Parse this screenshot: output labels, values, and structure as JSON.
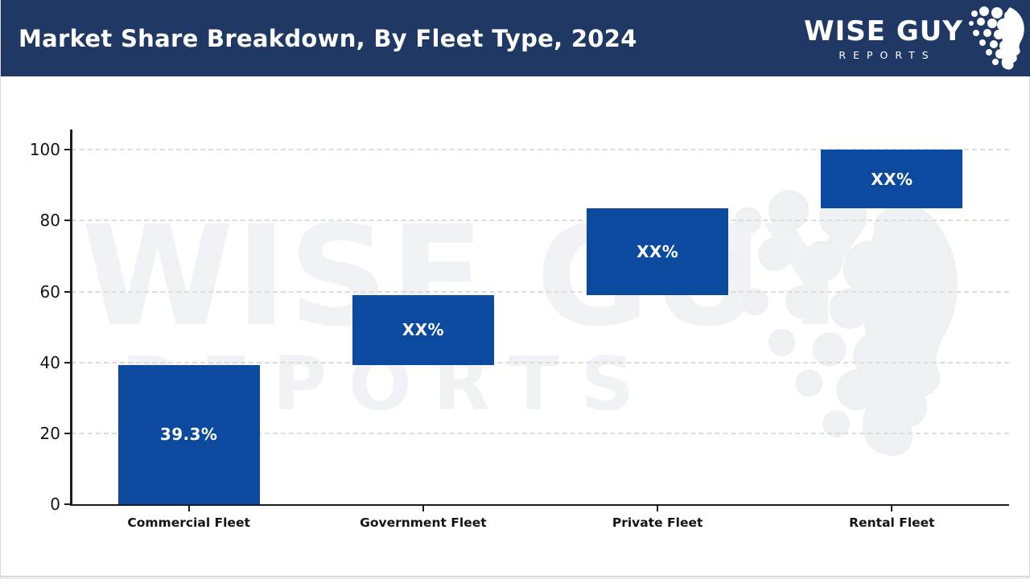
{
  "header": {
    "title": "Market Share Breakdown, By Fleet Type, 2024",
    "logo": {
      "line1": "WISE GUY",
      "line2": "REPORTS"
    }
  },
  "watermark": {
    "line1": "WISE GUY",
    "line2": "REPORTS"
  },
  "colors": {
    "header_bg": "#1F3864",
    "bar": "#0C4AA0",
    "gridline": "#dcdcdc",
    "axis": "#1c1c1c",
    "watermark": "#f1f2f5",
    "bar_label_text": "#ffffff"
  },
  "chart_data": {
    "type": "bar",
    "subtype": "waterfall",
    "title": "Market Share Breakdown, By Fleet Type, 2024",
    "categories": [
      "Commercial Fleet",
      "Government Fleet",
      "Private Fleet",
      "Rental Fleet"
    ],
    "segments": [
      {
        "category": "Commercial Fleet",
        "start": 0,
        "end": 39.3,
        "label": "39.3%"
      },
      {
        "category": "Government Fleet",
        "start": 39.3,
        "end": 59.0,
        "label": "XX%"
      },
      {
        "category": "Private Fleet",
        "start": 59.0,
        "end": 83.4,
        "label": "XX%"
      },
      {
        "category": "Rental Fleet",
        "start": 83.4,
        "end": 100,
        "label": "XX%"
      }
    ],
    "yticks": [
      0,
      20,
      40,
      60,
      80,
      100
    ],
    "ylim": [
      0,
      105
    ],
    "xlabel": "",
    "ylabel": "",
    "grid": "horizontal-dashed",
    "legend": "none"
  }
}
